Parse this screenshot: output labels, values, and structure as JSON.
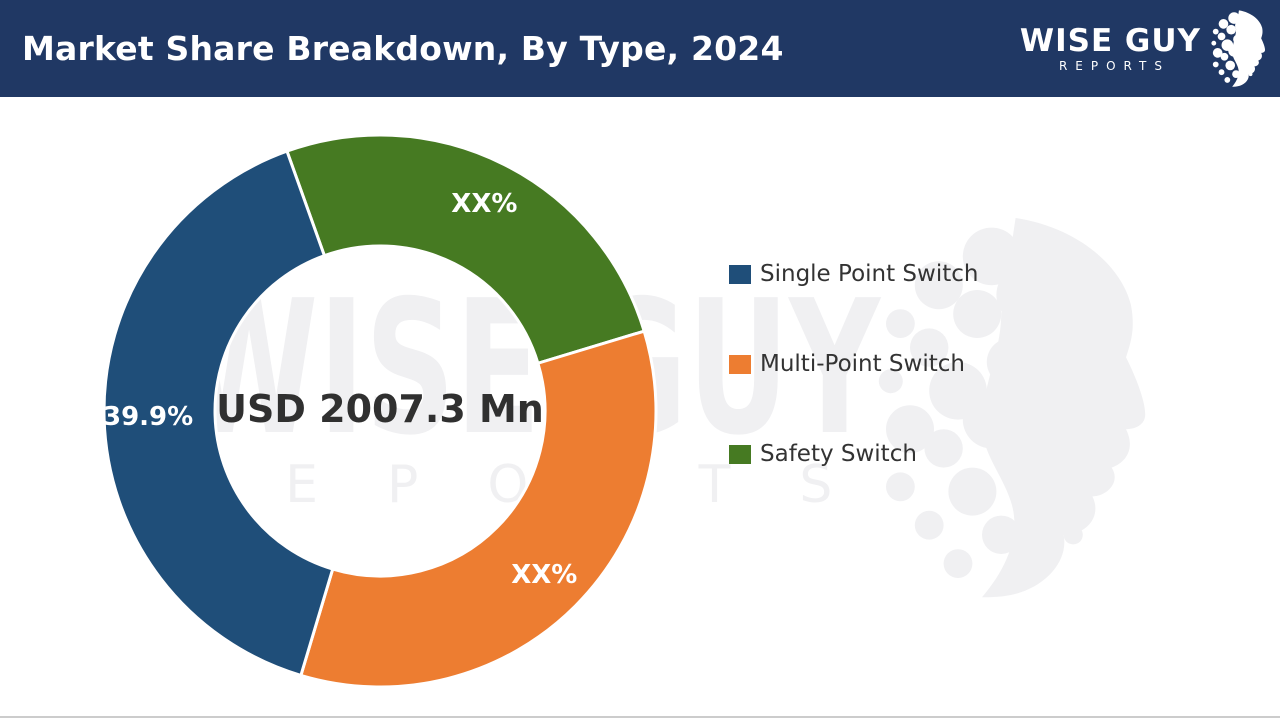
{
  "header": {
    "title": "Market Share Breakdown, By Type, 2024",
    "bg_color": "#203864",
    "logo": {
      "line1": "WISE GUY",
      "line2": "REPORTS"
    }
  },
  "watermark": {
    "line1": "WISE GUY",
    "line2": "REPORTS",
    "color": "#f0f0f2"
  },
  "chart_data": {
    "type": "donut",
    "title": "Market Share Breakdown, By Type, 2024",
    "center_label": "USD 2007.3 Mn",
    "start_angle_deg": -19.7,
    "direction": "clockwise",
    "slices_draw_order": [
      {
        "name": "Safety Switch",
        "display_label": "XX%",
        "value_pct": 25.8,
        "color": "#467a22"
      },
      {
        "name": "Multi-Point Switch",
        "display_label": "XX%",
        "value_pct": 34.3,
        "color": "#ed7d31"
      },
      {
        "name": "Single Point Switch",
        "display_label": "39.9%",
        "value_pct": 39.9,
        "color": "#1f4e79"
      }
    ],
    "legend_position": "right"
  },
  "legend": {
    "items": [
      {
        "label": "Single Point Switch",
        "color": "#1f4e79"
      },
      {
        "label": "Multi-Point Switch",
        "color": "#ed7d31"
      },
      {
        "label": "Safety Switch",
        "color": "#467a22"
      }
    ]
  }
}
